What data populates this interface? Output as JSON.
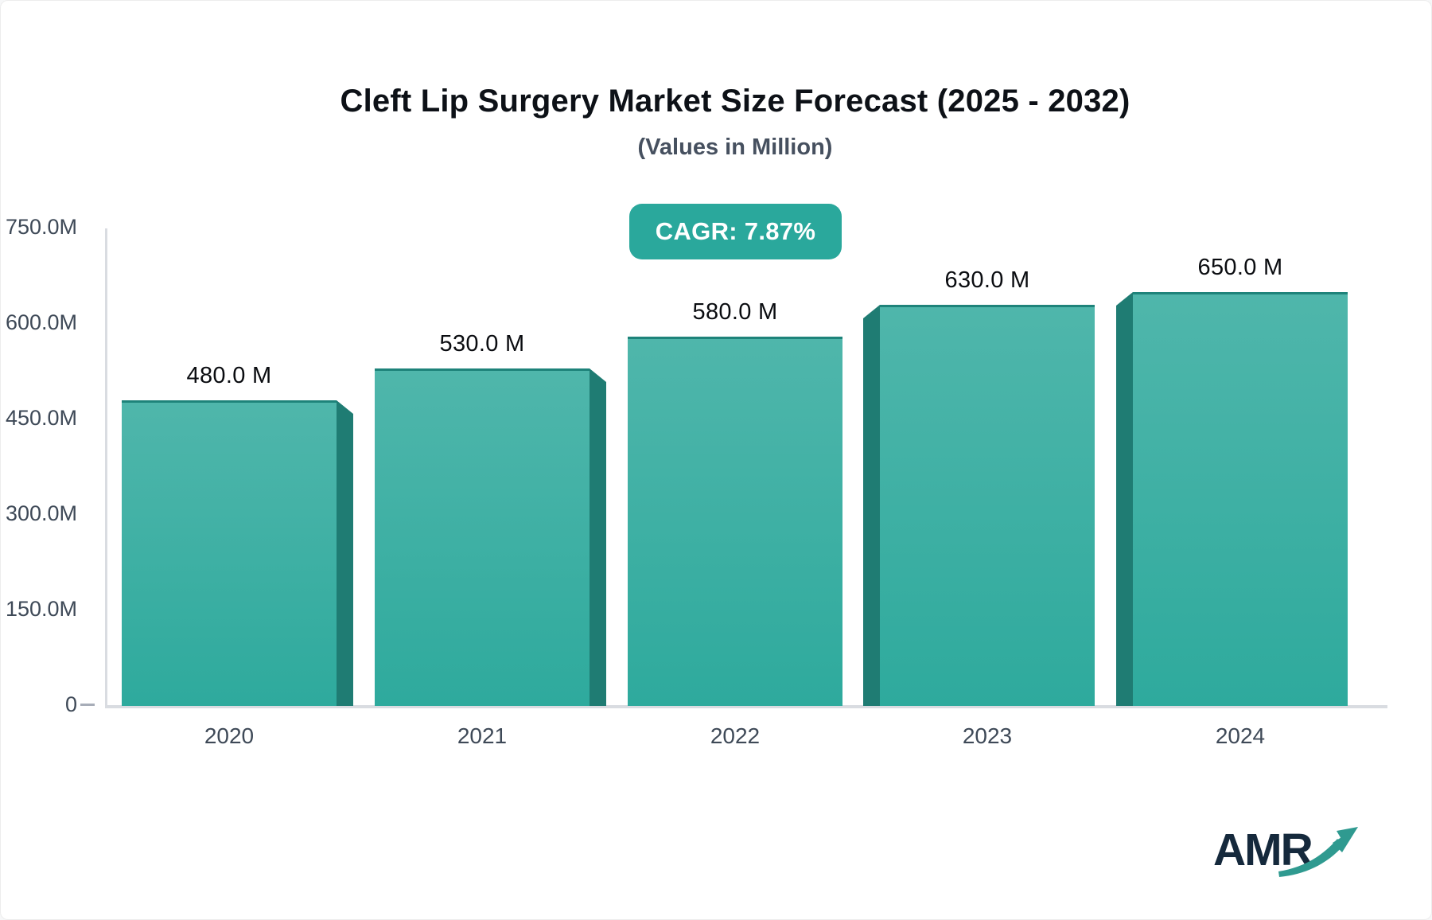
{
  "header": {
    "title": "Cleft Lip Surgery Market Size Forecast (2025 - 2032)",
    "subtitle": "(Values in Million)"
  },
  "badge": {
    "label": "CAGR: 7.87%",
    "bg_color": "#2aa89c",
    "text_color": "#ffffff"
  },
  "chart_data": {
    "type": "bar",
    "title": "Cleft Lip Surgery Market Size Forecast (2025 - 2032)",
    "subtitle": "(Values in Million)",
    "categories": [
      "2020",
      "2021",
      "2022",
      "2023",
      "2024"
    ],
    "values": [
      480.0,
      530.0,
      580.0,
      630.0,
      650.0
    ],
    "value_labels": [
      "480.0 M",
      "530.0 M",
      "580.0 M",
      "630.0 M",
      "650.0 M"
    ],
    "unit": "Million",
    "cagr_label": "CAGR: 7.87%",
    "cagr_percent": 7.87,
    "xlabel": "",
    "ylabel": "",
    "ylim": [
      0,
      750
    ],
    "yticks": [
      0,
      150,
      300,
      450,
      600,
      750
    ],
    "ytick_labels": [
      "0",
      "150.0M",
      "300.0M",
      "450.0M",
      "600.0M",
      "750.0M"
    ],
    "grid": false,
    "legend": false,
    "bar_style": "pseudo-3d",
    "colors": {
      "bar_top": "#4fb6ab",
      "bar_bottom": "#2eaa9d",
      "bar_side": "#1f7c73",
      "bar_top_edge": "#1e837a",
      "axis_line": "#d9dce1",
      "axis_text": "#3e4957",
      "value_text": "#0a0c10"
    }
  },
  "logo": {
    "text": "AMR",
    "arrow_color": "#2f9a90",
    "text_color": "#15293c"
  }
}
